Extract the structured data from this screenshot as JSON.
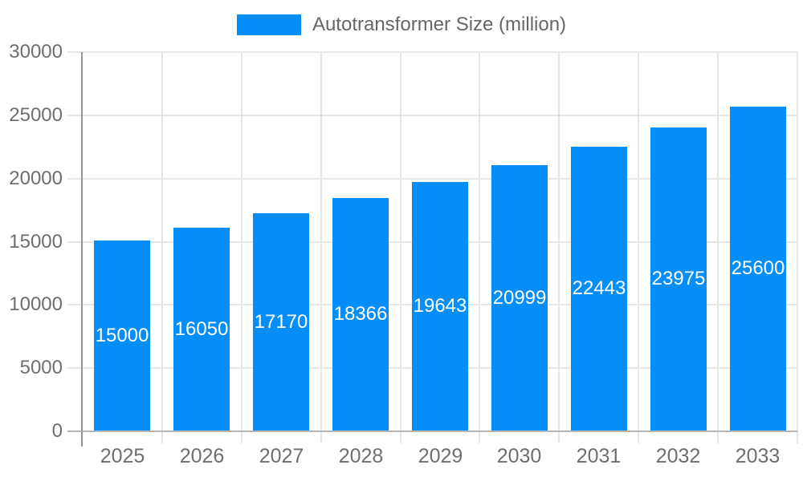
{
  "legend": {
    "label": "Autotransformer Size (million)"
  },
  "chart_data": {
    "type": "bar",
    "title": "Autotransformer Size (million)",
    "legend_position": "top",
    "categories": [
      "2025",
      "2026",
      "2027",
      "2028",
      "2029",
      "2030",
      "2031",
      "2032",
      "2033"
    ],
    "series": [
      {
        "name": "Autotransformer Size (million)",
        "values": [
          15000,
          16050,
          17170,
          18366,
          19643,
          20999,
          22443,
          23975,
          25600
        ]
      }
    ],
    "bar_value_labels": [
      "15000",
      "16050",
      "17170",
      "18366",
      "19643",
      "20999",
      "22443",
      "23975",
      "25600"
    ],
    "xlabel": "",
    "ylabel": "",
    "ylim": [
      0,
      30000
    ],
    "y_ticks": [
      0,
      5000,
      10000,
      15000,
      20000,
      25000,
      30000
    ],
    "y_tick_labels": [
      "0",
      "5000",
      "10000",
      "15000",
      "20000",
      "25000",
      "30000"
    ],
    "grid": true,
    "colors": {
      "bar": "#058EFA",
      "bar_label": "#ffffff",
      "grid": "#e6e6e6",
      "y_axis": "#949494",
      "x_baseline": "#b5b5b5",
      "tick_label": "#6e6e6e",
      "legend_text": "#666666",
      "background": "#ffffff"
    }
  }
}
